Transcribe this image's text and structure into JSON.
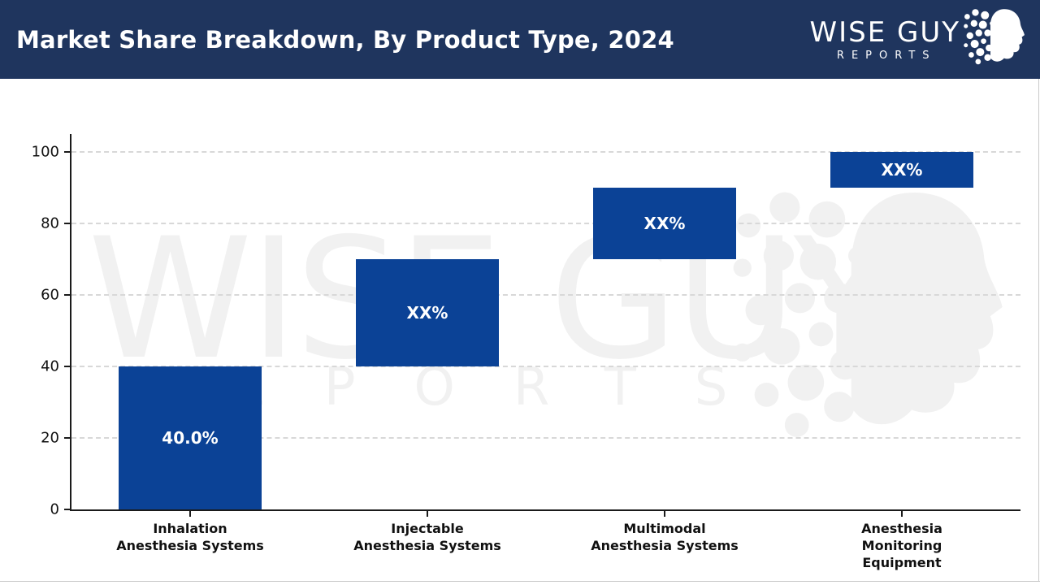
{
  "header": {
    "title": "Market Share Breakdown, By Product Type, 2024",
    "logo_line1": "WISE GUY",
    "logo_line2": "REPORTS"
  },
  "watermark": {
    "line1": "WISE GUY",
    "line2": "REPORTS"
  },
  "colors": {
    "header_bg": "#1f355e",
    "bar": "#0b4296",
    "grid": "#d8d8d8",
    "axis": "#1a1a1a",
    "bar_label": "#ffffff",
    "watermark": "#f1f1f1"
  },
  "chart_data": {
    "type": "bar",
    "subtype": "floating-segment-waterfall",
    "title": "Market Share Breakdown, By Product Type, 2024",
    "categories": [
      "Inhalation Anesthesia Systems",
      "Injectable Anesthesia Systems",
      "Multimodal Anesthesia Systems",
      "Anesthesia Monitoring Equipment"
    ],
    "category_lines": [
      [
        "Inhalation",
        "Anesthesia Systems"
      ],
      [
        "Injectable",
        "Anesthesia Systems"
      ],
      [
        "Multimodal",
        "Anesthesia Systems"
      ],
      [
        "Anesthesia",
        "Monitoring",
        "Equipment"
      ]
    ],
    "segments": [
      {
        "category": "Inhalation Anesthesia Systems",
        "start": 0,
        "end": 40,
        "label": "40.0%"
      },
      {
        "category": "Injectable Anesthesia Systems",
        "start": 40,
        "end": 70,
        "label": "XX%"
      },
      {
        "category": "Multimodal Anesthesia Systems",
        "start": 70,
        "end": 90,
        "label": "XX%"
      },
      {
        "category": "Anesthesia Monitoring Equipment",
        "start": 90,
        "end": 100,
        "label": "XX%"
      }
    ],
    "yticks": [
      0,
      20,
      40,
      60,
      80,
      100
    ],
    "ylim": [
      0,
      105
    ],
    "xlabel": "",
    "ylabel": "",
    "grid": "horizontal-dashed",
    "legend": "none"
  }
}
